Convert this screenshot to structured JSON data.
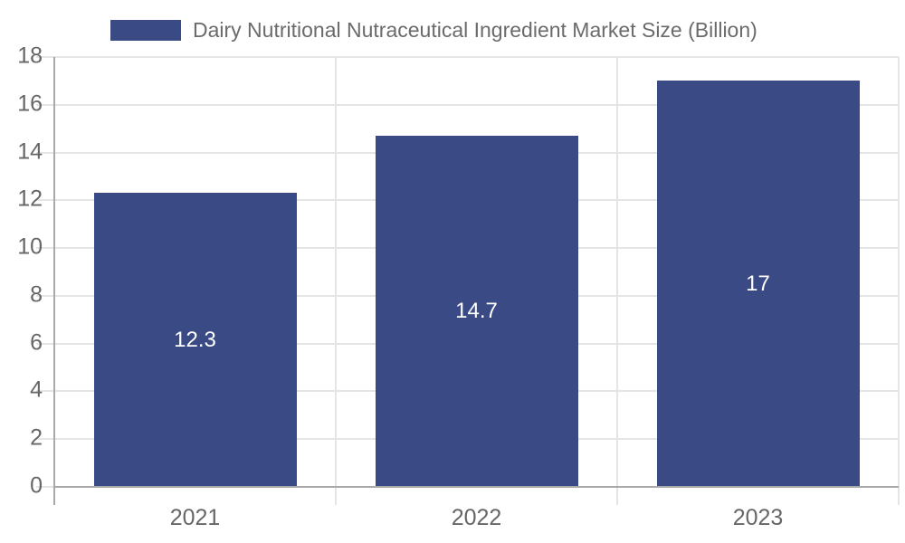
{
  "chart_data": {
    "type": "bar",
    "title": "Dairy Nutritional Nutraceutical Ingredient Market Size (Billion)",
    "categories": [
      "2021",
      "2022",
      "2023"
    ],
    "values": [
      12.3,
      14.7,
      17
    ],
    "value_labels": [
      "12.3",
      "14.7",
      "17"
    ],
    "xlabel": "",
    "ylabel": "",
    "ylim": [
      0,
      18
    ],
    "ytick_step": 2,
    "ytick_labels": [
      "0",
      "2",
      "4",
      "6",
      "8",
      "10",
      "12",
      "14",
      "16",
      "18"
    ],
    "grid": "on",
    "legend_position": "top-left",
    "colors": {
      "bar": "#3a4a84",
      "axis_line": "#a9a9a9",
      "grid_line": "#e5e5e5",
      "axis_text": "#666666",
      "legend_text": "#6b6b6b",
      "value_label": "#ffffff",
      "background": "#ffffff"
    }
  }
}
